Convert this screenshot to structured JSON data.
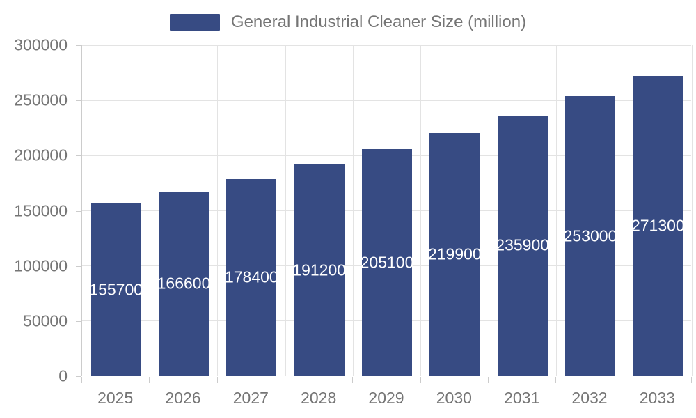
{
  "chart_data": {
    "type": "bar",
    "title": "General Industrial Cleaner Size (million)",
    "categories": [
      "2025",
      "2026",
      "2027",
      "2028",
      "2029",
      "2030",
      "2031",
      "2032",
      "2033"
    ],
    "values": [
      155700,
      166600,
      178400,
      191200,
      205100,
      219900,
      235900,
      253000,
      271300
    ],
    "xlabel": "",
    "ylabel": "",
    "ylim": [
      0,
      300000
    ],
    "y_ticks": [
      0,
      50000,
      100000,
      150000,
      200000,
      250000,
      300000
    ],
    "grid": "on",
    "legend_position": "top-center",
    "bar_labels_position": "inside-center",
    "colors": {
      "bar": "#374B83",
      "bar_label_text": "#ffffff",
      "axis_text": "#757575",
      "grid_line": "#e3e3e3",
      "axis_line": "#cccccc",
      "background": "#ffffff"
    }
  }
}
